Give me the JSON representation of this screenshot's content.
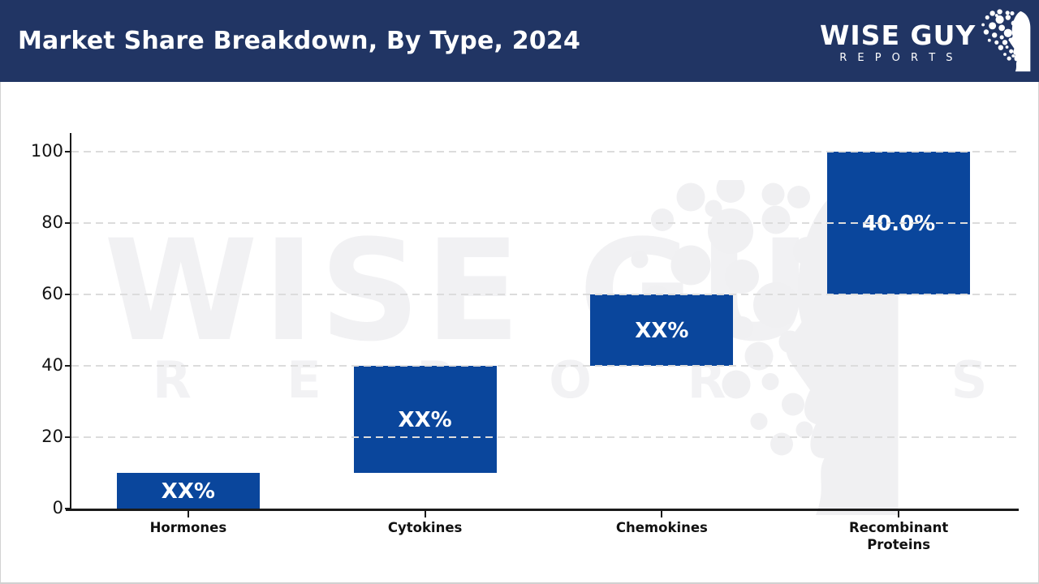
{
  "header": {
    "title": "Market Share Breakdown, By Type, 2024",
    "logo": {
      "line1": "WISE GUY",
      "line2": "R E P O R T S"
    }
  },
  "watermark": {
    "line1": "WISE GUY",
    "line2": "R E P O R T S"
  },
  "chart_data": {
    "type": "bar",
    "subtype": "floating-range-waterfall",
    "title": "Market Share Breakdown, By Type, 2024",
    "categories": [
      "Hormones",
      "Cytokines",
      "Chemokines",
      "Recombinant Proteins"
    ],
    "bars": [
      {
        "category": "Hormones",
        "tick_label": "Hormones",
        "start": 0,
        "end": 10,
        "label": "XX%"
      },
      {
        "category": "Cytokines",
        "tick_label": "Cytokines",
        "start": 10,
        "end": 40,
        "label": "XX%"
      },
      {
        "category": "Chemokines",
        "tick_label": "Chemokines",
        "start": 40,
        "end": 60,
        "label": "XX%"
      },
      {
        "category": "Recombinant Proteins",
        "tick_label": "Recombinant\nProteins",
        "start": 60,
        "end": 100,
        "label": "40.0%"
      }
    ],
    "yticks": [
      0,
      20,
      40,
      60,
      80,
      100
    ],
    "ylim": [
      0,
      100
    ],
    "xlabel": "",
    "ylabel": "",
    "grid": "horizontal-dashed",
    "legend": "none",
    "colors": {
      "bar": "#0a469c",
      "bar_label": "#ffffff",
      "header_bg": "#213564",
      "axis": "#1a1a1a",
      "gridline": "#dcdcdc",
      "watermark": "#f1f1f3"
    }
  }
}
